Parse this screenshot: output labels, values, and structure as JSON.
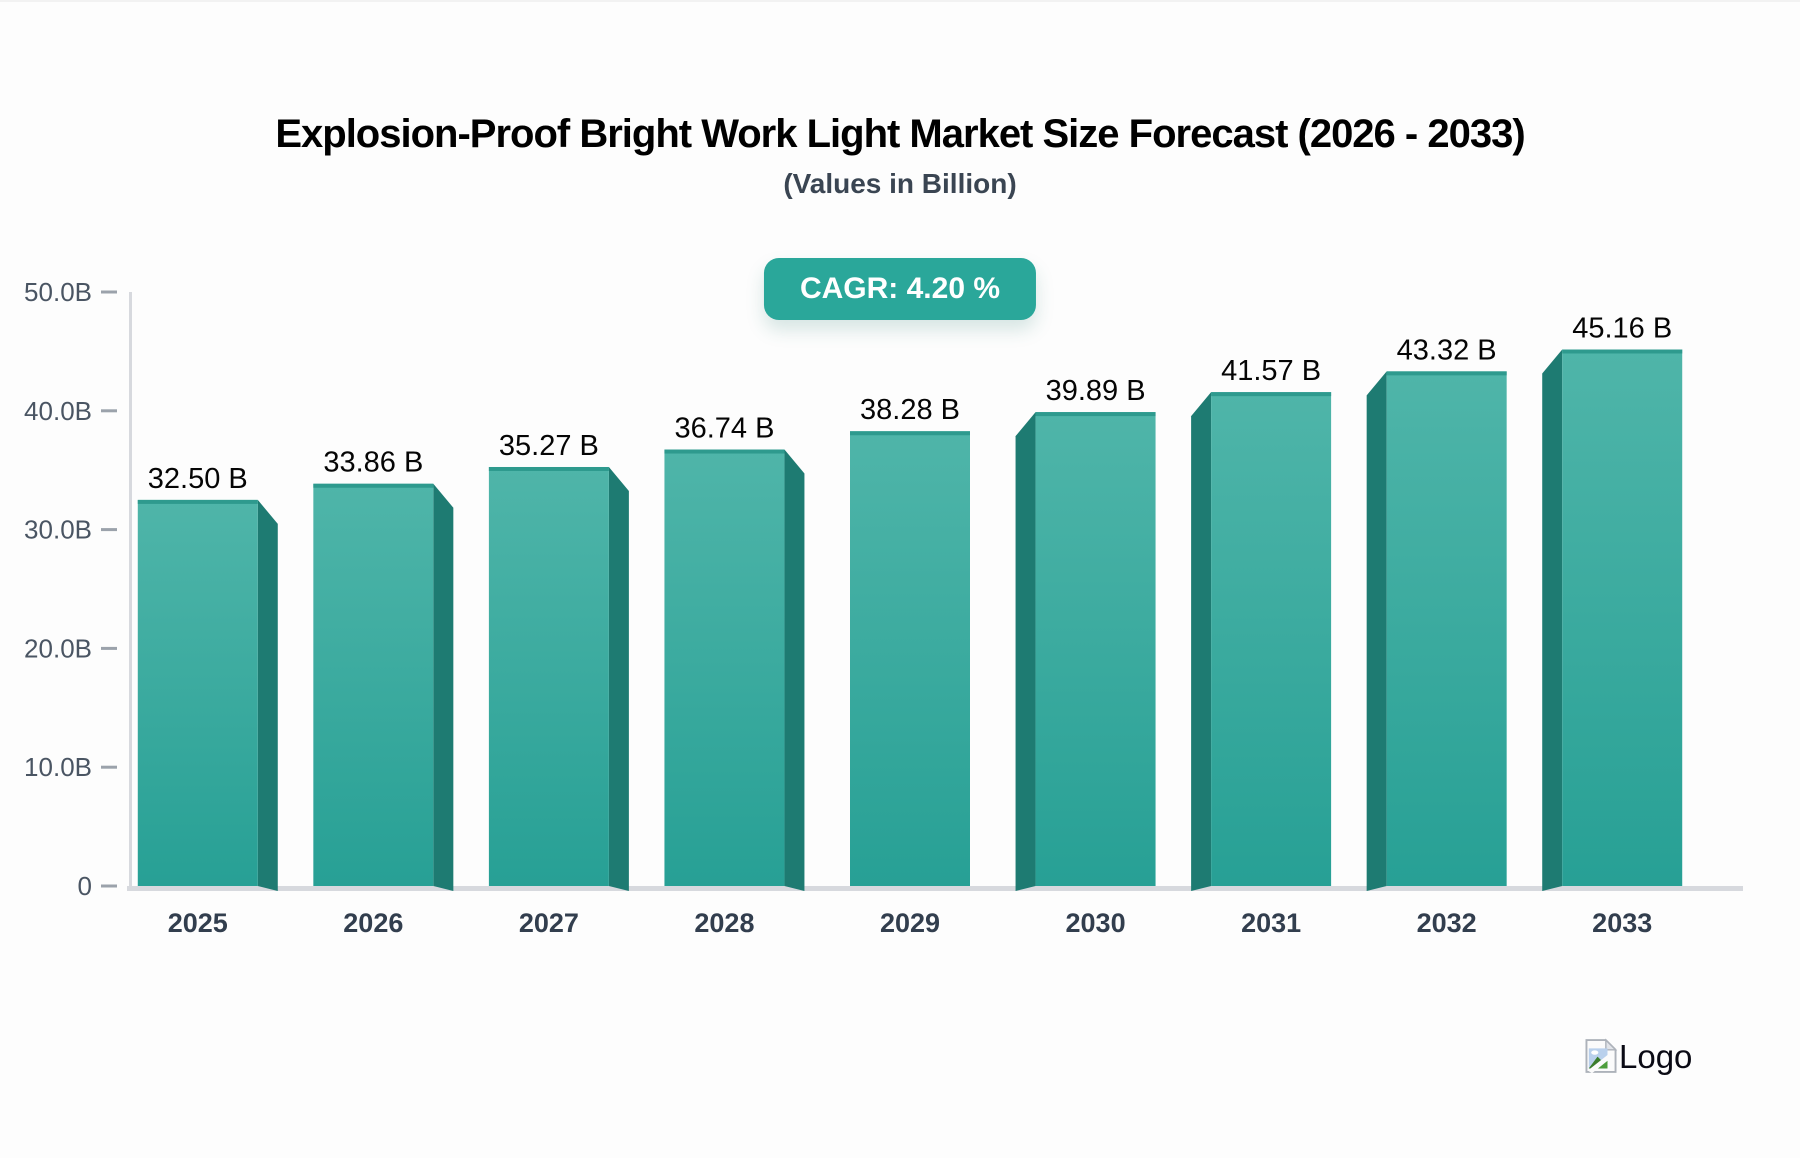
{
  "header": {
    "title": "Explosion-Proof Bright Work Light Market Size Forecast (2026 - 2033)",
    "subtitle": "(Values in Billion)"
  },
  "badge": {
    "label": "CAGR: 4.20 %",
    "background": "#2AA79A",
    "text_color": "#FFFFFF"
  },
  "chart_data": {
    "type": "bar",
    "title": "Explosion-Proof Bright Work Light Market Size Forecast (2026 - 2033)",
    "subtitle": "(Values in Billion)",
    "categories": [
      "2025",
      "2026",
      "2027",
      "2028",
      "2029",
      "2030",
      "2031",
      "2032",
      "2033"
    ],
    "values": [
      32.5,
      33.86,
      35.27,
      36.74,
      38.28,
      39.89,
      41.57,
      43.32,
      45.16
    ],
    "value_labels": [
      "32.50 B",
      "33.86 B",
      "35.27 B",
      "36.74 B",
      "38.28 B",
      "39.89 B",
      "41.57 B",
      "43.32 B",
      "45.16 B"
    ],
    "xlabel": "",
    "ylabel": "",
    "ylim": [
      0,
      50
    ],
    "y_ticks": [
      {
        "value": 50,
        "label": "50.0B"
      },
      {
        "value": 40,
        "label": "40.0B"
      },
      {
        "value": 30,
        "label": "30.0B"
      },
      {
        "value": 20,
        "label": "20.0B"
      },
      {
        "value": 10,
        "label": "10.0B"
      },
      {
        "value": 0,
        "label": "0"
      }
    ],
    "grid": "off",
    "legend": "none",
    "style": "pseudo-3d bars, side extrusion facing plot center",
    "colors": {
      "bar_face_top": "#4FB5A9",
      "bar_face_bottom": "#27A095",
      "bar_top_edge": "#2E9A8E",
      "bar_side": "#1E7B72",
      "axis_line": "#D7D9DE",
      "tick_dash": "#9BA2AB",
      "tick_text": "#4A5563",
      "category_text": "#323E4E",
      "value_text": "#050505"
    }
  },
  "footer": {
    "logo_alt": "Logo"
  }
}
